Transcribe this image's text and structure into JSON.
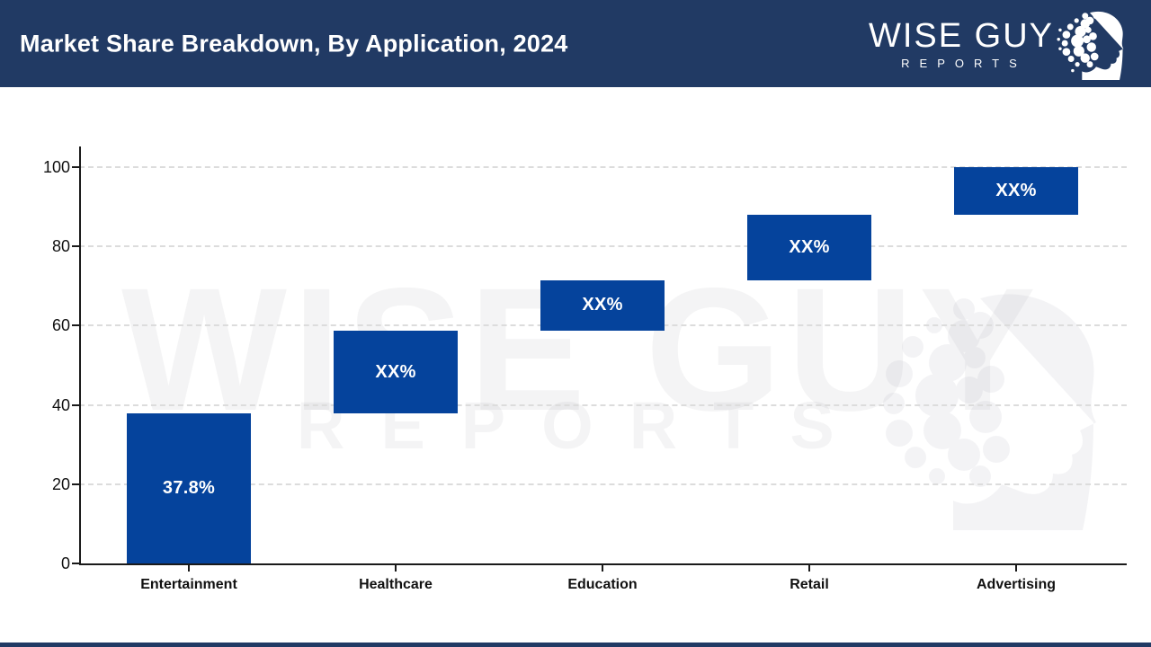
{
  "header": {
    "title": "Market Share Breakdown, By Application, 2024",
    "bg_color": "#213A64",
    "logo": {
      "line1": "WISE GUY",
      "line2": "REPORTS"
    }
  },
  "watermark": {
    "line1": "WISE GUY",
    "line2": "REPORTS"
  },
  "chart_data": {
    "type": "bar",
    "variant": "waterfall",
    "title": "Market Share Breakdown, By Application, 2024",
    "categories": [
      "Entertainment",
      "Healthcare",
      "Education",
      "Retail",
      "Advertising"
    ],
    "segments": [
      {
        "category": "Entertainment",
        "start": 0,
        "end": 37.8,
        "value": 37.8,
        "label": "37.8%"
      },
      {
        "category": "Healthcare",
        "start": 37.8,
        "end": 58.7,
        "value": 20.9,
        "label": "XX%"
      },
      {
        "category": "Education",
        "start": 58.7,
        "end": 71.5,
        "value": 12.8,
        "label": "XX%"
      },
      {
        "category": "Retail",
        "start": 71.5,
        "end": 87.9,
        "value": 16.4,
        "label": "XX%"
      },
      {
        "category": "Advertising",
        "start": 87.9,
        "end": 100,
        "value": 12.1,
        "label": "XX%"
      }
    ],
    "xlabel": "",
    "ylabel": "",
    "ylim": [
      0,
      100
    ],
    "yticks": [
      0,
      20,
      40,
      60,
      80,
      100
    ],
    "grid": "horizontal-dashed",
    "legend": "none",
    "bar_color": "#05439C",
    "bar_label_color": "#FFFFFF",
    "axis_color": "#1a1a1a",
    "gridline_color": "#dcdcdc"
  }
}
